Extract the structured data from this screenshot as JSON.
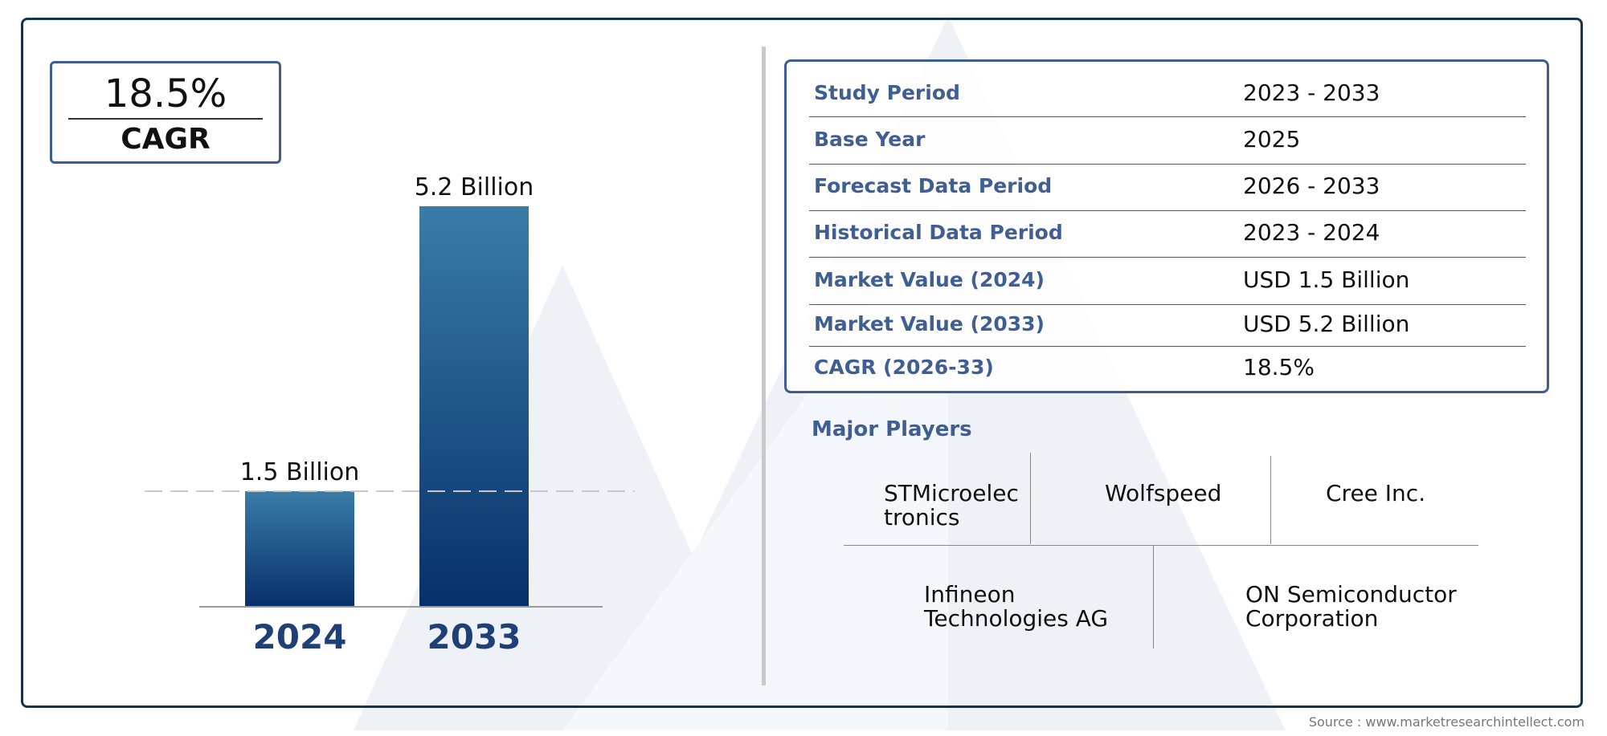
{
  "cagr_box": {
    "value": "18.5%",
    "label": "CAGR"
  },
  "chart_data": {
    "type": "bar",
    "categories": [
      "2024",
      "2033"
    ],
    "values": [
      1.5,
      5.2
    ],
    "data_labels": [
      "1.5 Billion",
      "5.2 Billion"
    ],
    "title": "",
    "xlabel": "",
    "ylabel": "",
    "ylim": [
      0,
      5.2
    ],
    "grid": false,
    "reference_line_at": 1.5,
    "colors": {
      "bar_top": "#3a7ca8",
      "bar_bottom": "#07306a",
      "tick": "#1f3f77"
    }
  },
  "info_table": [
    {
      "label": "Study Period",
      "value": "2023 - 2033"
    },
    {
      "label": "Base Year",
      "value": "2025"
    },
    {
      "label": "Forecast Data Period",
      "value": "2026 - 2033"
    },
    {
      "label": "Historical Data Period",
      "value": "2023 - 2024"
    },
    {
      "label": "Market Value (2024)",
      "value": "USD 1.5 Billion"
    },
    {
      "label": "Market Value (2033)",
      "value": "USD 5.2 Billion"
    },
    {
      "label": "CAGR (2026-33)",
      "value": "18.5%"
    }
  ],
  "players": {
    "title": "Major Players",
    "items": [
      "STMicroelec tronics",
      "Wolfspeed",
      "Cree Inc.",
      "Infineon Technologies AG",
      "ON Semiconductor Corporation"
    ]
  },
  "source": "Source : www.marketresearchintellect.com",
  "colors": {
    "accent": "#3e5d94",
    "frame": "#13344f",
    "label": "#3f5f92"
  }
}
